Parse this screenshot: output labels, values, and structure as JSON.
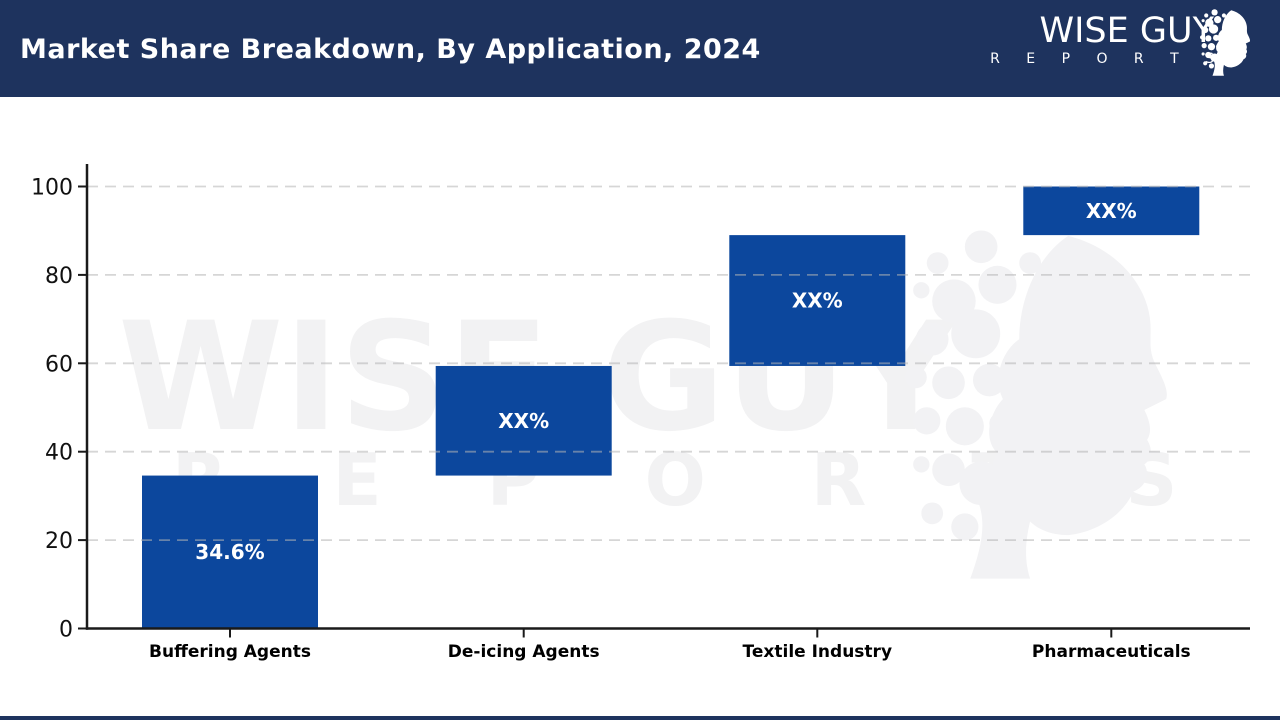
{
  "header": {
    "title": "Market Share Breakdown, By Application, 2024",
    "background_color": "#1e335e",
    "logo": {
      "line1": "WISE GUY",
      "line2": "R E P O R T S"
    }
  },
  "watermark": {
    "line1": "WISE GUY",
    "line2": "R E P O R T S"
  },
  "chart_data": {
    "type": "bar",
    "subtype": "waterfall",
    "title": "Market Share Breakdown, By Application, 2024",
    "categories": [
      "Buffering Agents",
      "De-icing Agents",
      "Textile Industry",
      "Pharmaceuticals"
    ],
    "segments": [
      {
        "category": "Buffering Agents",
        "start": 0,
        "end": 34.6,
        "label": "34.6%"
      },
      {
        "category": "De-icing Agents",
        "start": 34.6,
        "end": 59.4,
        "label": "XX%"
      },
      {
        "category": "Textile Industry",
        "start": 59.4,
        "end": 89.0,
        "label": "XX%"
      },
      {
        "category": "Pharmaceuticals",
        "start": 89.0,
        "end": 100,
        "label": "XX%"
      }
    ],
    "yticks": [
      0,
      20,
      40,
      60,
      80,
      100
    ],
    "ylim": [
      0,
      105
    ],
    "xlabel": "",
    "ylabel": "",
    "grid": true,
    "grid_style": "dashed",
    "legend": false,
    "bar_color": "#0c479d",
    "bar_label_color": "#ffffff",
    "axis_color": "#1a1a1a",
    "tick_label_color": "#111111"
  }
}
